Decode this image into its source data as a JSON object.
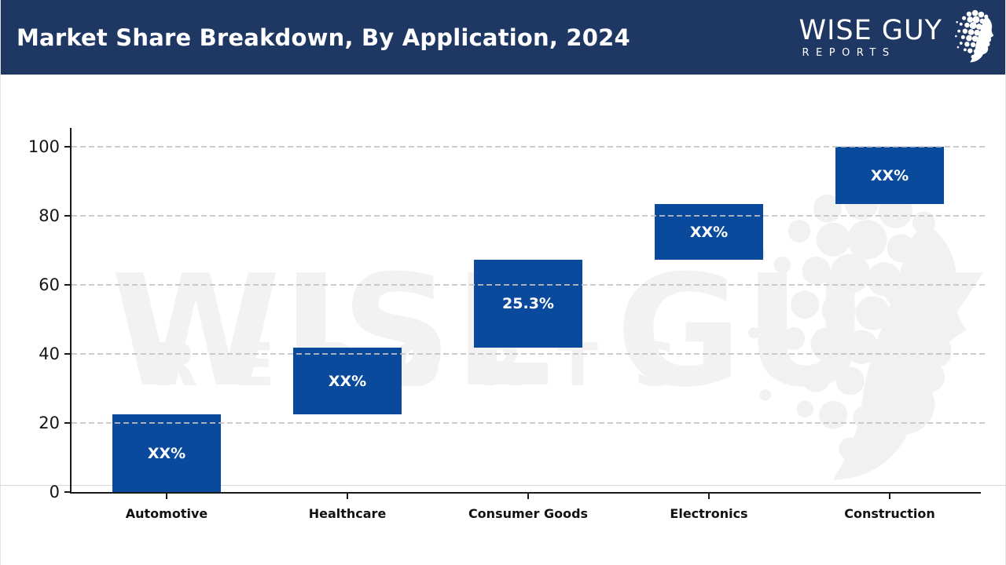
{
  "header": {
    "title": "Market Share Breakdown, By Application, 2024",
    "brand_name": "WISE GUY",
    "brand_sub": "REPORTS",
    "background": "#1f3763",
    "text_color": "#ffffff"
  },
  "watermark": {
    "line1": "WISE GUY",
    "line2": "REPORTS",
    "color": "#f2f2f2"
  },
  "chart_data": {
    "type": "bar",
    "variant": "waterfall",
    "title": "Market Share Breakdown, By Application, 2024",
    "categories": [
      "Automotive",
      "Healthcare",
      "Consumer Goods",
      "Electronics",
      "Construction"
    ],
    "series": [
      {
        "name": "Market share (%)",
        "segments": [
          {
            "category": "Automotive",
            "start": 0,
            "end": 22.4,
            "label": "XX%"
          },
          {
            "category": "Healthcare",
            "start": 22.4,
            "end": 41.9,
            "label": "XX%"
          },
          {
            "category": "Consumer Goods",
            "start": 41.9,
            "end": 67.2,
            "label": "25.3%"
          },
          {
            "category": "Electronics",
            "start": 67.2,
            "end": 83.3,
            "label": "XX%"
          },
          {
            "category": "Construction",
            "start": 83.3,
            "end": 100,
            "label": "XX%"
          }
        ]
      }
    ],
    "xlabel": "",
    "ylabel": "",
    "ylim": [
      0,
      100
    ],
    "yticks": [
      0,
      20,
      40,
      60,
      80,
      100
    ],
    "grid": "horizontal-dashed",
    "legend_position": "none",
    "colors": {
      "bar": "#0a4a9c",
      "bar_label": "#ffffff",
      "axis": "#1a1a1a",
      "grid": "#d9d9d9",
      "background": "#ffffff"
    }
  }
}
